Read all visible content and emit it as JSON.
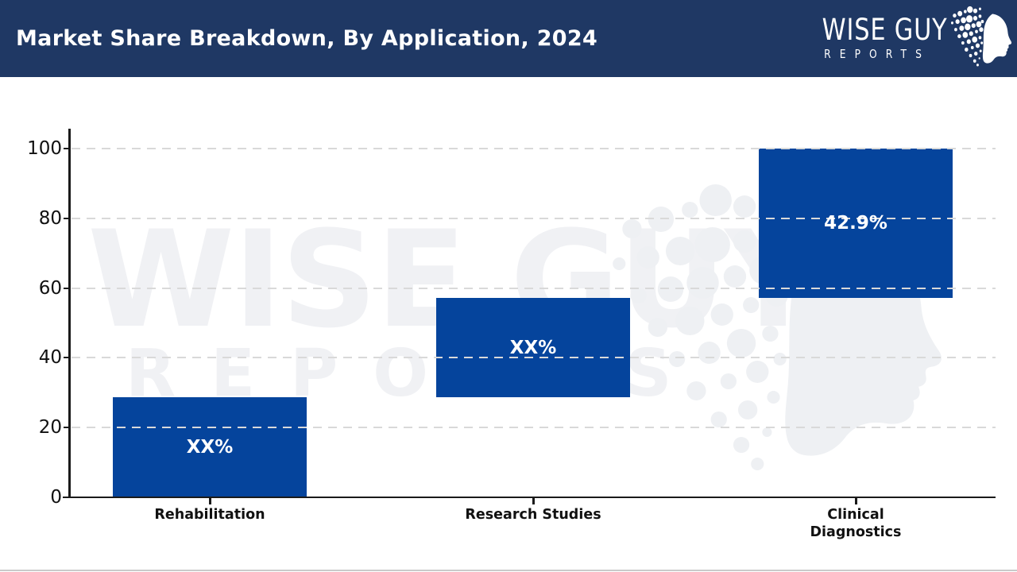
{
  "header": {
    "title": "Market Share Breakdown, By Application, 2024",
    "logo_line1": "WISE GUY",
    "logo_line2": "REPORTS"
  },
  "watermark": {
    "line1": "WISE GUY",
    "line2": "REPORTS"
  },
  "chart_data": {
    "type": "bar",
    "subtype": "floating-segment-waterfall",
    "title": "Market Share Breakdown, By Application, 2024",
    "categories": [
      "Rehabilitation",
      "Research Studies",
      "Clinical\nDiagnostics"
    ],
    "segments": [
      {
        "category": "Rehabilitation",
        "start": 0,
        "end": 28.6,
        "label": "XX%"
      },
      {
        "category": "Research Studies",
        "start": 28.6,
        "end": 57.1,
        "label": "XX%"
      },
      {
        "category": "Clinical Diagnostics",
        "start": 57.1,
        "end": 100,
        "label": "42.9%"
      }
    ],
    "yticks": [
      0,
      20,
      40,
      60,
      80,
      100
    ],
    "ylim": [
      0,
      106
    ],
    "xlabel": "",
    "ylabel": "",
    "legend": "none",
    "grid": "horizontal-dashed",
    "bar_color": "#05449c",
    "label_color": "#ffffff"
  },
  "colors": {
    "header_bg": "#1f3864",
    "bar": "#05449c",
    "grid": "#d9d9d9",
    "axis": "#1a1a1a",
    "watermark": "#f0f1f4"
  }
}
